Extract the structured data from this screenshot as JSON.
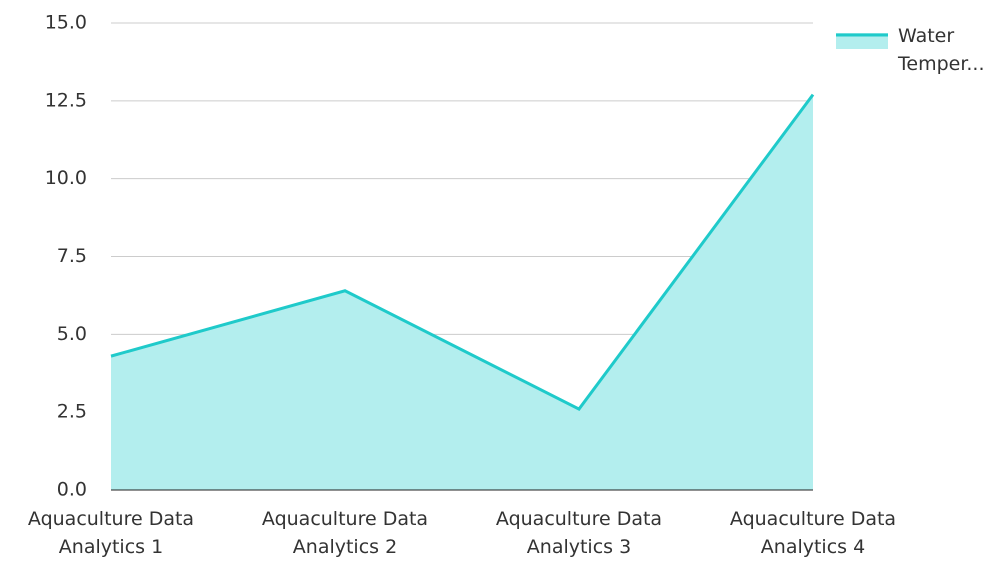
{
  "chart_data": {
    "type": "area",
    "categories": [
      "Aquaculture Data Analytics 1",
      "Aquaculture Data Analytics 2",
      "Aquaculture Data Analytics 3",
      "Aquaculture Data Analytics 4"
    ],
    "series": [
      {
        "name": "Water Temper...",
        "color": "#1fcaca",
        "fill": "#b3eeee",
        "values": [
          4.3,
          6.4,
          2.6,
          12.7
        ]
      }
    ],
    "ylim": [
      0,
      15
    ],
    "yticks": [
      {
        "value": 0,
        "label": "0.0"
      },
      2.5,
      {
        "value": 5,
        "label": "5.0"
      },
      7.5,
      {
        "value": 10,
        "label": "10.0"
      },
      12.5,
      {
        "value": 15,
        "label": "15.0"
      }
    ],
    "grid": true,
    "legend": "right"
  }
}
